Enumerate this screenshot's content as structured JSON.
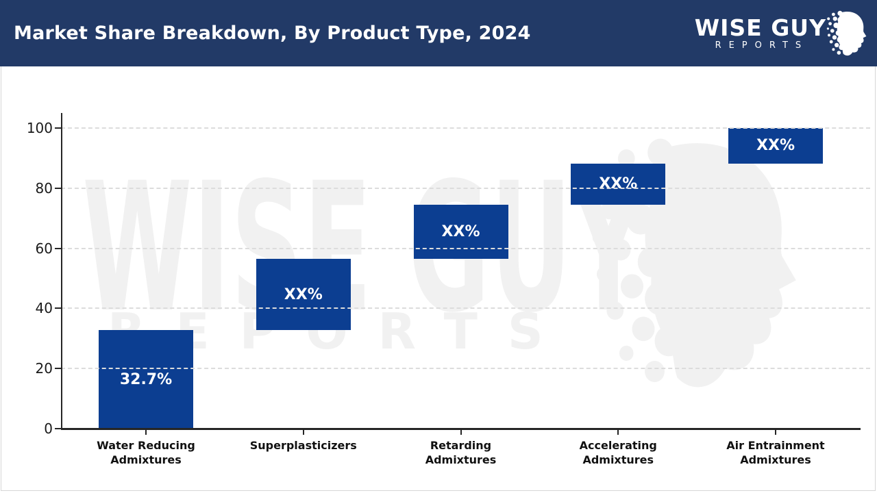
{
  "header": {
    "title": "Market Share Breakdown, By Product Type, 2024",
    "logo": {
      "line1": "WISE GUY",
      "line2": "REPORTS",
      "head_icon": "wiseguy-head-icon"
    }
  },
  "watermark": {
    "line1": "WISE GUY",
    "line2": "REPORTS",
    "head_icon": "wiseguy-head-watermark"
  },
  "colors": {
    "header_bg": "#223a67",
    "bar": "#0c3e91",
    "bar_label": "#ffffff",
    "gridline": "#dcdcdc",
    "axis": "#262626",
    "watermark": "#f1f1f1"
  },
  "chart_data": {
    "type": "bar",
    "subtype": "waterfall",
    "title": "Market Share Breakdown, By Product Type, 2024",
    "xlabel": "",
    "ylabel": "",
    "ylim": [
      0,
      105
    ],
    "yticks": [
      0,
      20,
      40,
      60,
      80,
      100
    ],
    "grid": "dashed-horizontal",
    "legend": null,
    "categories": [
      "Water Reducing Admixtures",
      "Superplasticizers",
      "Retarding Admixtures",
      "Accelerating Admixtures",
      "Air Entrainment Admixtures"
    ],
    "category_lines": [
      [
        "Water Reducing",
        "Admixtures"
      ],
      [
        "Superplasticizers"
      ],
      [
        "Retarding",
        "Admixtures"
      ],
      [
        "Accelerating",
        "Admixtures"
      ],
      [
        "Air Entrainment",
        "Admixtures"
      ]
    ],
    "segments": [
      {
        "category": "Water Reducing Admixtures",
        "start": 0,
        "end": 32.7,
        "label": "32.7%"
      },
      {
        "category": "Superplasticizers",
        "start": 32.7,
        "end": 56.5,
        "label": "XX%"
      },
      {
        "category": "Retarding Admixtures",
        "start": 56.5,
        "end": 74.5,
        "label": "XX%"
      },
      {
        "category": "Accelerating Admixtures",
        "start": 74.5,
        "end": 88.2,
        "label": "XX%"
      },
      {
        "category": "Air Entrainment Admixtures",
        "start": 88.2,
        "end": 100,
        "label": "XX%"
      }
    ]
  }
}
